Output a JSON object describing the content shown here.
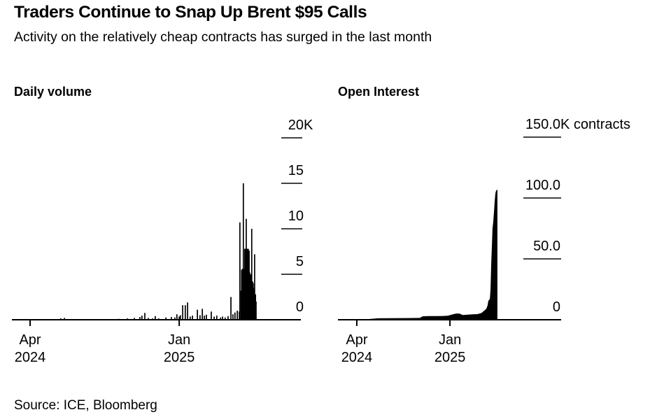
{
  "header": {
    "title": "Traders Continue to Snap Up Brent $95 Calls",
    "subtitle": "Activity on the relatively cheap contracts has surged in the last month"
  },
  "footer": {
    "source": "Source: ICE, Bloomberg"
  },
  "colors": {
    "ink": "#000000",
    "tick_dash": "#444444",
    "background": "#ffffff"
  },
  "chart_data": [
    {
      "type": "bar",
      "title": "Daily volume",
      "unit": "K",
      "ylim": [
        0,
        21
      ],
      "legend": "none",
      "grid": "off",
      "y_ticks": [
        {
          "value": 20,
          "label": "20",
          "suffix": "K"
        },
        {
          "value": 15,
          "label": "15"
        },
        {
          "value": 10,
          "label": "10"
        },
        {
          "value": 5,
          "label": "5"
        },
        {
          "value": 0,
          "label": "0"
        }
      ],
      "x_ticks": [
        {
          "frac": 0.063,
          "line1": "Apr",
          "line2": "2024"
        },
        {
          "frac": 0.579,
          "line1": "Jan",
          "line2": "2025"
        }
      ],
      "points_note": "pairs of [x fraction along axis, daily volume in thousands of contracts]",
      "points": [
        [
          0.169,
          0.15
        ],
        [
          0.182,
          0.2
        ],
        [
          0.37,
          0.1
        ],
        [
          0.4,
          0.15
        ],
        [
          0.424,
          0.2
        ],
        [
          0.443,
          0.3
        ],
        [
          0.45,
          0.45
        ],
        [
          0.46,
          0.75
        ],
        [
          0.472,
          0.2
        ],
        [
          0.487,
          0.15
        ],
        [
          0.496,
          0.4
        ],
        [
          0.508,
          0.15
        ],
        [
          0.533,
          0.25
        ],
        [
          0.552,
          0.3
        ],
        [
          0.564,
          0.25
        ],
        [
          0.571,
          0.6
        ],
        [
          0.579,
          0.35
        ],
        [
          0.583,
          0.5
        ],
        [
          0.591,
          1.6
        ],
        [
          0.6,
          1.6
        ],
        [
          0.608,
          1.9
        ],
        [
          0.617,
          0.35
        ],
        [
          0.625,
          0.45
        ],
        [
          0.642,
          1.1
        ],
        [
          0.651,
          0.5
        ],
        [
          0.659,
          1.2
        ],
        [
          0.666,
          0.45
        ],
        [
          0.673,
          0.55
        ],
        [
          0.69,
          0.9
        ],
        [
          0.7,
          0.35
        ],
        [
          0.709,
          0.45
        ],
        [
          0.722,
          0.25
        ],
        [
          0.729,
          0.35
        ],
        [
          0.738,
          0.25
        ],
        [
          0.748,
          0.4
        ],
        [
          0.758,
          2.5
        ],
        [
          0.765,
          0.6
        ],
        [
          0.772,
          0.8
        ],
        [
          0.78,
          1.0
        ],
        [
          0.787,
          0.9
        ],
        [
          0.789,
          10.7
        ],
        [
          0.793,
          3.2
        ],
        [
          0.795,
          5.5
        ],
        [
          0.798,
          5.6
        ],
        [
          0.801,
          15.0
        ],
        [
          0.804,
          5.6
        ],
        [
          0.806,
          7.8
        ],
        [
          0.809,
          7.8
        ],
        [
          0.811,
          11.1
        ],
        [
          0.813,
          7.8
        ],
        [
          0.816,
          7.8
        ],
        [
          0.818,
          7.8
        ],
        [
          0.821,
          7.6
        ],
        [
          0.823,
          5.2
        ],
        [
          0.826,
          5.0
        ],
        [
          0.828,
          4.0
        ],
        [
          0.83,
          10.0
        ],
        [
          0.833,
          4.2
        ],
        [
          0.835,
          4.0
        ],
        [
          0.838,
          3.5
        ],
        [
          0.84,
          7.2
        ],
        [
          0.843,
          2.8
        ],
        [
          0.845,
          2.0
        ]
      ]
    },
    {
      "type": "area",
      "title": "Open Interest",
      "unit": "K contracts",
      "ylim": [
        0,
        150
      ],
      "legend": "none",
      "grid": "off",
      "y_ticks": [
        {
          "value": 150,
          "label": "150.0",
          "suffix": "K contracts"
        },
        {
          "value": 100,
          "label": "100.0"
        },
        {
          "value": 50,
          "label": "50.0"
        },
        {
          "value": 0,
          "label": "0"
        }
      ],
      "x_ticks": [
        {
          "frac": 0.085,
          "line1": "Apr",
          "line2": "2024"
        },
        {
          "frac": 0.505,
          "line1": "Jan",
          "line2": "2025"
        }
      ],
      "points_note": "pairs of [x fraction along axis, open interest in thousands of contracts]",
      "points": [
        [
          0.0,
          0.05
        ],
        [
          0.038,
          0.1
        ],
        [
          0.085,
          0.2
        ],
        [
          0.132,
          0.4
        ],
        [
          0.18,
          1.2
        ],
        [
          0.243,
          1.3
        ],
        [
          0.306,
          1.4
        ],
        [
          0.369,
          1.5
        ],
        [
          0.382,
          2.8
        ],
        [
          0.407,
          3.0
        ],
        [
          0.448,
          3.0
        ],
        [
          0.473,
          3.1
        ],
        [
          0.495,
          3.3
        ],
        [
          0.521,
          4.6
        ],
        [
          0.533,
          5.1
        ],
        [
          0.549,
          5.0
        ],
        [
          0.562,
          3.9
        ],
        [
          0.584,
          4.2
        ],
        [
          0.606,
          4.4
        ],
        [
          0.628,
          4.6
        ],
        [
          0.647,
          5.5
        ],
        [
          0.659,
          7.4
        ],
        [
          0.669,
          9.0
        ],
        [
          0.675,
          12.0
        ],
        [
          0.678,
          15.5
        ],
        [
          0.685,
          17.0
        ],
        [
          0.688,
          25.0
        ],
        [
          0.691,
          45.0
        ],
        [
          0.694,
          60.0
        ],
        [
          0.697,
          75.0
        ],
        [
          0.7,
          80.0
        ],
        [
          0.704,
          90.0
        ],
        [
          0.707,
          98.0
        ],
        [
          0.71,
          104.0
        ],
        [
          0.713,
          106.0
        ],
        [
          0.719,
          107.0
        ]
      ]
    }
  ]
}
